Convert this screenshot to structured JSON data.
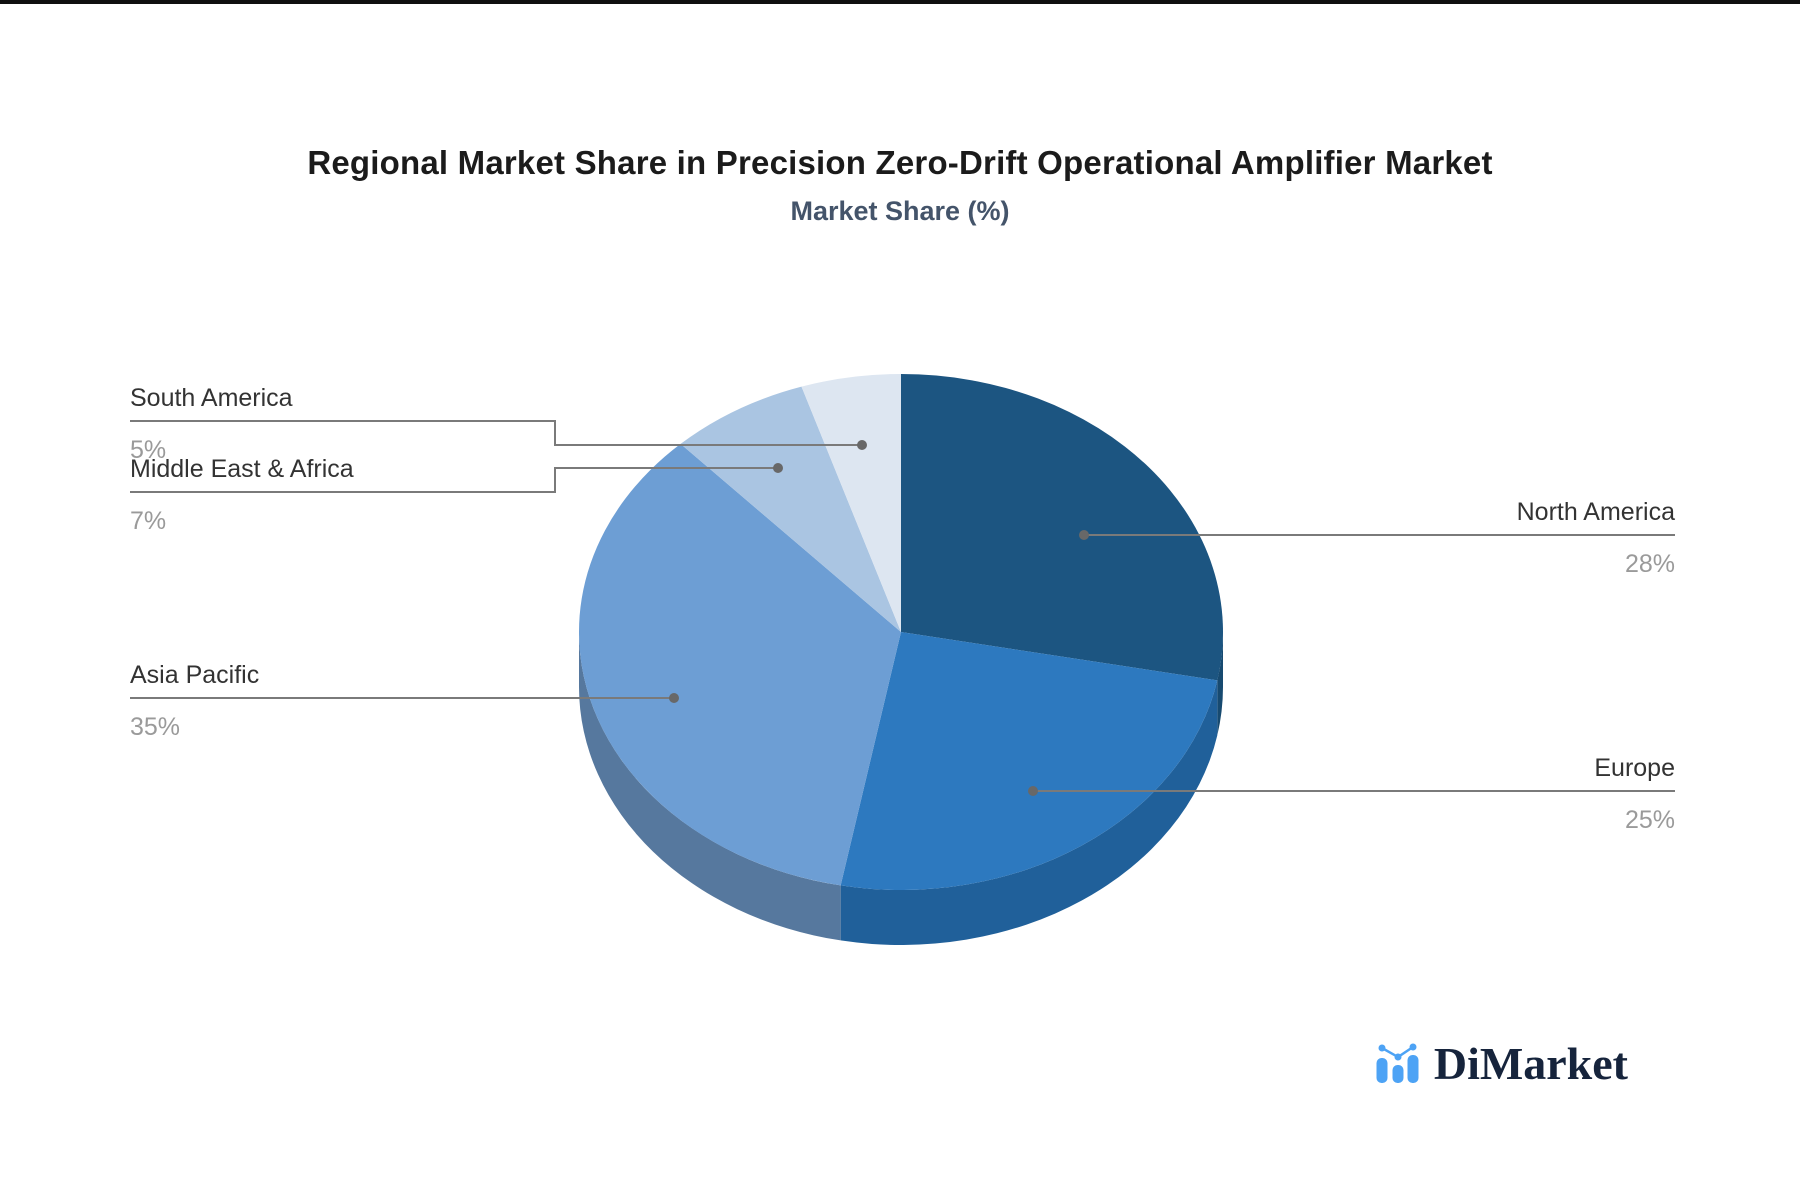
{
  "page": {
    "top_bar_color": "#0f0f0f",
    "background_color": "#ffffff"
  },
  "header": {
    "title": "Regional Market Share in Precision Zero-Drift Operational Amplifier Market",
    "subtitle": "Market Share (%)",
    "title_color": "#1b1b1b",
    "subtitle_color": "#44546a"
  },
  "chart_data": {
    "type": "pie",
    "title": "Regional Market Share in Precision Zero-Drift Operational Amplifier Market",
    "subtitle": "Market Share (%)",
    "unit": "%",
    "style": "3d-pie",
    "start_angle_deg": -90,
    "direction": "clockwise",
    "slices": [
      {
        "label": "North America",
        "value": 28,
        "pct_label": "28%",
        "color": "#1c5581",
        "side_color": "#174a70",
        "label_side": "right"
      },
      {
        "label": "Europe",
        "value": 25,
        "pct_label": "25%",
        "color": "#2d79bf",
        "side_color": "#20609a",
        "label_side": "right"
      },
      {
        "label": "Asia Pacific",
        "value": 35,
        "pct_label": "35%",
        "color": "#6d9ed4",
        "side_color": "#56789e",
        "label_side": "left"
      },
      {
        "label": "Middle East & Africa",
        "value": 7,
        "pct_label": "7%",
        "color": "#aac5e2",
        "side_color": "#8fb0d0",
        "label_side": "left"
      },
      {
        "label": "South America",
        "value": 5,
        "pct_label": "5%",
        "color": "#dde6f1",
        "side_color": "#c3d2e3",
        "label_side": "left"
      }
    ],
    "leader_line_color": "#7a7a7a",
    "leader_dot_color": "#686868",
    "label_text_color": "#333333",
    "pct_text_color": "#9a9a9a",
    "legend": "none",
    "grid": "off"
  },
  "logo": {
    "text": "DiMarket",
    "text_color": "#16243c",
    "icon": "bar-chart-icon",
    "icon_color": "#4da3f5"
  }
}
